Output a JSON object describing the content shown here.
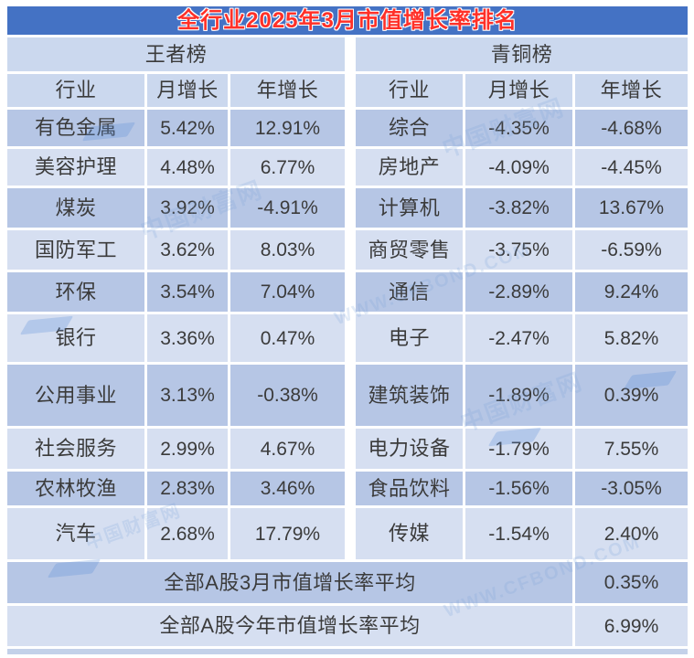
{
  "title": "全行业2025年3月市值增长率排名",
  "watermark_text": "中国财富网 WWW.CFBOND.COM",
  "colors": {
    "title_bg": "#4472C4",
    "title_text": "#FF3028",
    "header_bg": "#CBD8EE",
    "row_dark": "#B6C6E5",
    "row_light": "#D6DFF1",
    "text": "#3B3B3B"
  },
  "table": {
    "group_headers": [
      "王者榜",
      "青铜榜"
    ],
    "column_headers": [
      "行业",
      "月增长",
      "年增长",
      "行业",
      "月增长",
      "年增长"
    ],
    "rows": [
      [
        "有色金属",
        "5.42%",
        "12.91%",
        "综合",
        "-4.35%",
        "-4.68%"
      ],
      [
        "美容护理",
        "4.48%",
        "6.77%",
        "房地产",
        "-4.09%",
        "-4.45%"
      ],
      [
        "煤炭",
        "3.92%",
        "-4.91%",
        "计算机",
        "-3.82%",
        "13.67%"
      ],
      [
        "国防军工",
        "3.62%",
        "8.03%",
        "商贸零售",
        "-3.75%",
        "-6.59%"
      ],
      [
        "环保",
        "3.54%",
        "7.04%",
        "通信",
        "-2.89%",
        "9.24%"
      ],
      [
        "银行",
        "3.36%",
        "0.47%",
        "电子",
        "-2.47%",
        "5.82%"
      ],
      [
        "公用事业",
        "3.13%",
        "-0.38%",
        "建筑装饰",
        "-1.89%",
        "0.39%"
      ],
      [
        "社会服务",
        "2.99%",
        "4.67%",
        "电力设备",
        "-1.79%",
        "7.55%"
      ],
      [
        "农林牧渔",
        "2.83%",
        "3.46%",
        "食品饮料",
        "-1.56%",
        "-3.05%"
      ],
      [
        "汽车",
        "2.68%",
        "17.79%",
        "传媒",
        "-1.54%",
        "2.40%"
      ]
    ],
    "summaries": [
      {
        "label": "全部A股3月市值增长率平均",
        "value": "0.35%"
      },
      {
        "label": "全部A股今年市值增长率平均",
        "value": "6.99%"
      }
    ]
  },
  "chart_data": {
    "type": "table",
    "title": "全行业2025年3月市值增长率排名",
    "columns": [
      "行业",
      "月增长",
      "年增长"
    ],
    "king_list": [
      {
        "行业": "有色金属",
        "月增长": "5.42%",
        "年增长": "12.91%"
      },
      {
        "行业": "美容护理",
        "月增长": "4.48%",
        "年增长": "6.77%"
      },
      {
        "行业": "煤炭",
        "月增长": "3.92%",
        "年增长": "-4.91%"
      },
      {
        "行业": "国防军工",
        "月增长": "3.62%",
        "年增长": "8.03%"
      },
      {
        "行业": "环保",
        "月增长": "3.54%",
        "年增长": "7.04%"
      },
      {
        "行业": "银行",
        "月增长": "3.36%",
        "年增长": "0.47%"
      },
      {
        "行业": "公用事业",
        "月增长": "3.13%",
        "年增长": "-0.38%"
      },
      {
        "行业": "社会服务",
        "月增长": "2.99%",
        "年增长": "4.67%"
      },
      {
        "行业": "农林牧渔",
        "月增长": "2.83%",
        "年增长": "3.46%"
      },
      {
        "行业": "汽车",
        "月增长": "2.68%",
        "年增长": "17.79%"
      }
    ],
    "bronze_list": [
      {
        "行业": "综合",
        "月增长": "-4.35%",
        "年增长": "-4.68%"
      },
      {
        "行业": "房地产",
        "月增长": "-4.09%",
        "年增长": "-4.45%"
      },
      {
        "行业": "计算机",
        "月增长": "-3.82%",
        "年增长": "13.67%"
      },
      {
        "行业": "商贸零售",
        "月增长": "-3.75%",
        "年增长": "-6.59%"
      },
      {
        "行业": "通信",
        "月增长": "-2.89%",
        "年增长": "9.24%"
      },
      {
        "行业": "电子",
        "月增长": "-2.47%",
        "年增长": "5.82%"
      },
      {
        "行业": "建筑装饰",
        "月增长": "-1.89%",
        "年增长": "0.39%"
      },
      {
        "行业": "电力设备",
        "月增长": "-1.79%",
        "年增长": "7.55%"
      },
      {
        "行业": "食品饮料",
        "月增长": "-1.56%",
        "年增长": "-3.05%"
      },
      {
        "行业": "传媒",
        "月增长": "-1.54%",
        "年增长": "2.40%"
      }
    ],
    "averages": {
      "全部A股3月市值增长率平均": "0.35%",
      "全部A股今年市值增长率平均": "6.99%"
    }
  }
}
